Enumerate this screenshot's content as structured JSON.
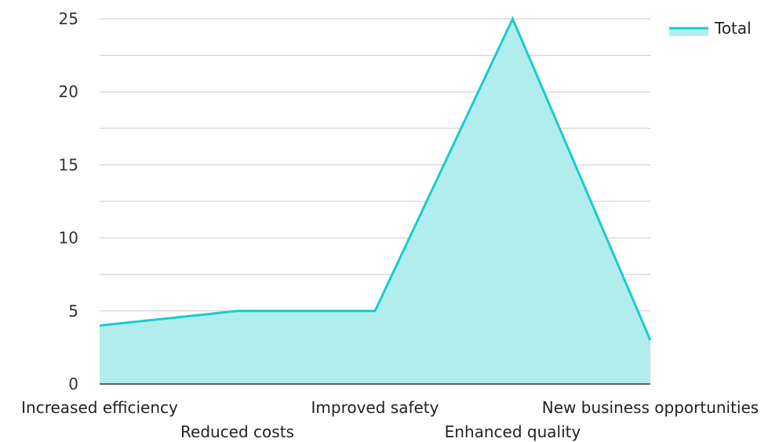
{
  "chart_data": {
    "type": "area",
    "title": "",
    "xlabel": "",
    "ylabel": "",
    "categories": [
      "Increased efficiency",
      "Reduced costs",
      "Improved safety",
      "Enhanced quality",
      "New business opportunities"
    ],
    "series": [
      {
        "name": "Total",
        "values": [
          4,
          5,
          5,
          25,
          3
        ]
      }
    ],
    "ylim": [
      0,
      25
    ],
    "yticks": [
      0,
      5,
      10,
      15,
      20,
      25
    ],
    "grid": true,
    "legend": "top-right",
    "colors": {
      "line": "#19CCCC",
      "fill": "#B2EDED",
      "grid": "#cccccc",
      "axis": "#333333"
    }
  }
}
